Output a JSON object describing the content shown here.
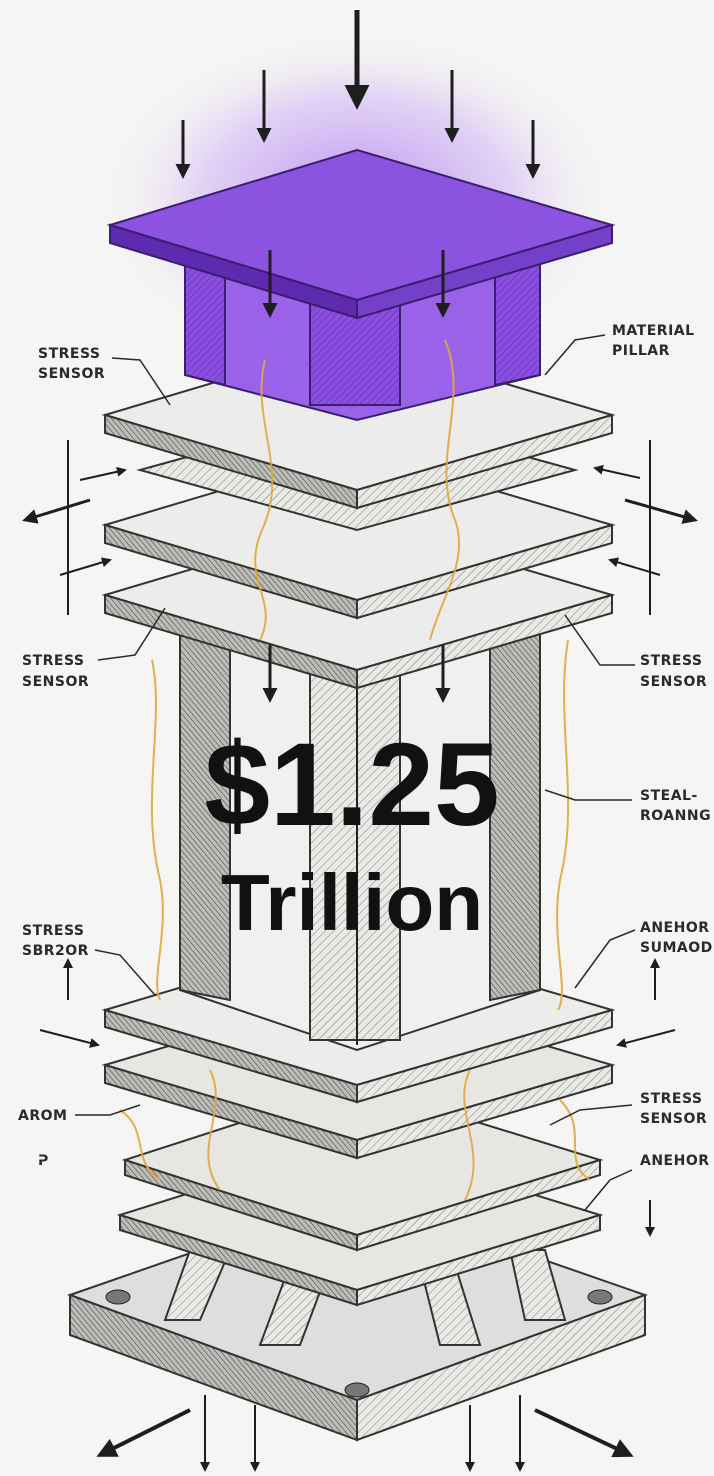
{
  "headline": {
    "amount": "$1.25",
    "unit": "Trillion"
  },
  "labels": {
    "top_left_1": "STRESS",
    "top_left_2": "SENSOR",
    "top_right_1": "MATERIAL",
    "top_right_2": "PILLAR",
    "mid_left_1": "STRESS",
    "mid_left_2": "SENSOR",
    "mid_right_1": "STRESS",
    "mid_right_2": "SENSOR",
    "steel_1": "STEAL-",
    "steel_2": "ROANNG",
    "low_left_1": "STRESS",
    "low_left_2": "SBR2OR",
    "anchor_r_1": "ANEHOR",
    "anchor_r_2": "SUMAOD",
    "arom": "AROM",
    "arom_small": "ᕈ",
    "stress_r_1": "STRESS",
    "stress_r_2": "SENSOR",
    "anchor_r3": "ANEHOR"
  },
  "colors": {
    "accent_purple": "#7a3fd6",
    "glow_purple": "#b98cf2",
    "strand_gold": "#e0a93a",
    "ink": "#2a2a2a"
  }
}
